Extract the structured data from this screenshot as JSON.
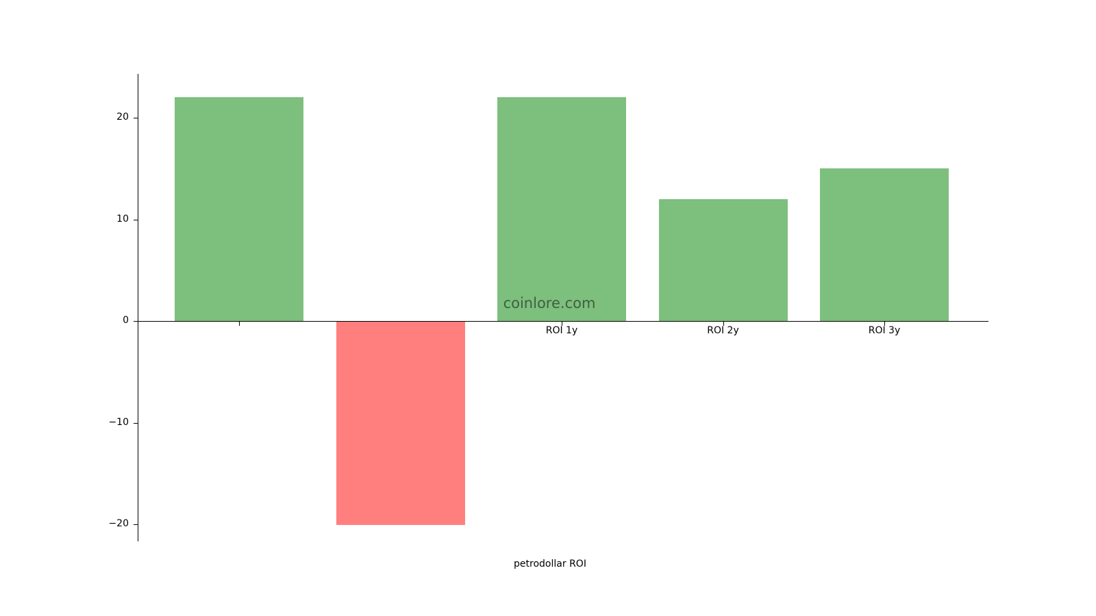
{
  "page": {
    "background": "#ffffff"
  },
  "chart_data": {
    "type": "bar",
    "title": "",
    "xlabel": "petrodollar ROI",
    "ylabel": "",
    "categories": [
      "",
      "",
      "ROI 1y",
      "ROI 2y",
      "ROI 3y"
    ],
    "values": [
      22,
      -20,
      22,
      12,
      15
    ],
    "series": [
      {
        "name": "petrodollar ROI",
        "values": [
          22,
          -20,
          22,
          12,
          15
        ]
      }
    ],
    "bar_colors": [
      "#7dbf7d",
      "#ff7f7f",
      "#7dbf7d",
      "#7dbf7d",
      "#7dbf7d"
    ],
    "positive_color": "#7dbf7d",
    "negative_color": "#ff7f7f",
    "yticks": [
      20,
      10,
      0,
      -10,
      -20
    ],
    "ylim": [
      -21.7,
      24.3
    ],
    "grid": false,
    "legend": false,
    "axis_color": "#000000",
    "text_color": "#000000",
    "watermark": "coinlore.com",
    "watermark_color": "rgba(0,0,0,0.5)"
  }
}
